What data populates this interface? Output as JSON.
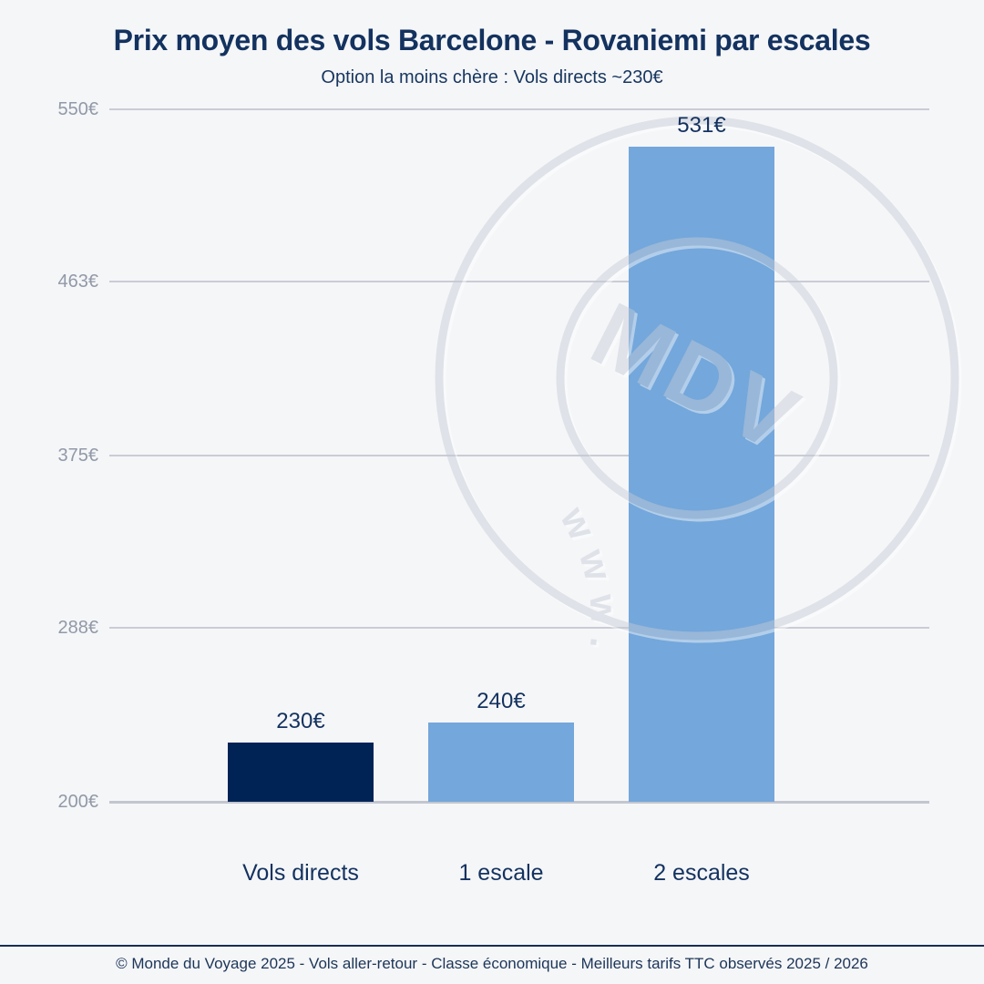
{
  "chart_data": {
    "type": "bar",
    "title": "Prix moyen des vols Barcelone - Rovaniemi par escales",
    "subtitle": "Option la moins chère : Vols directs ~230€",
    "categories": [
      "Vols directs",
      "1 escale",
      "2 escales"
    ],
    "values": [
      230,
      240,
      531
    ],
    "value_labels": [
      "230€",
      "240€",
      "531€"
    ],
    "bar_colors": [
      "#002356",
      "#74a7db",
      "#74a7db"
    ],
    "ylim": [
      200,
      550
    ],
    "yticks": [
      {
        "value": 200,
        "label": "200€"
      },
      {
        "value": 288,
        "label": "288€"
      },
      {
        "value": 375,
        "label": "375€"
      },
      {
        "value": 463,
        "label": "463€"
      },
      {
        "value": 550,
        "label": "550€"
      }
    ],
    "xlabel": "",
    "ylabel": "",
    "grid": true,
    "legend": false
  },
  "watermark": {
    "ring_text": "www.monde-du-voyage.com ·",
    "center_text": "MDV"
  },
  "footer": {
    "text": "© Monde du Voyage 2025 - Vols aller-retour - Classe économique - Meilleurs tarifs TTC observés 2025 / 2026"
  },
  "colors": {
    "background": "#f5f6f8",
    "text_navy": "#13325f",
    "bar_primary": "#002356",
    "bar_secondary": "#74a7db",
    "gridline": "#caccd5",
    "tick_label": "#9199a7",
    "footer_line": "#1a2d52"
  }
}
